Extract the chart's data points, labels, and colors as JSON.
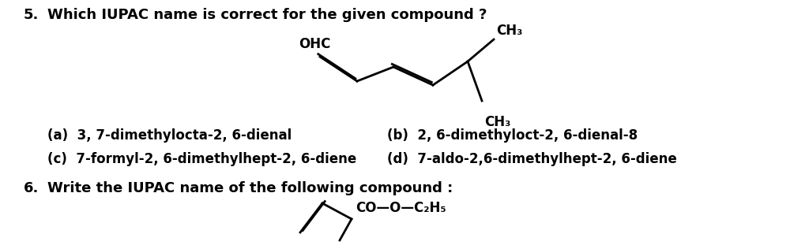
{
  "title_num": "5.",
  "title_text": "Which IUPAC name is correct for the given compound ?",
  "q6_num": "6.",
  "q6_text": "Write the IUPAC name of the following compound :",
  "option_a": "(a)  3, 7-dimethylocta-2, 6-dienal",
  "option_b": "(b)  2, 6-dimethyloct-2, 6-dienal-8",
  "option_c": "(c)  7-formyl-2, 6-dimethylhept-2, 6-diene",
  "option_d": "(d)  7-aldo-2,6-dimethylhept-2, 6-diene",
  "bg_color": "#ffffff",
  "text_color": "#000000",
  "font_size_title": 13,
  "font_size_options": 12,
  "font_size_q6": 13,
  "font_size_chem": 11
}
